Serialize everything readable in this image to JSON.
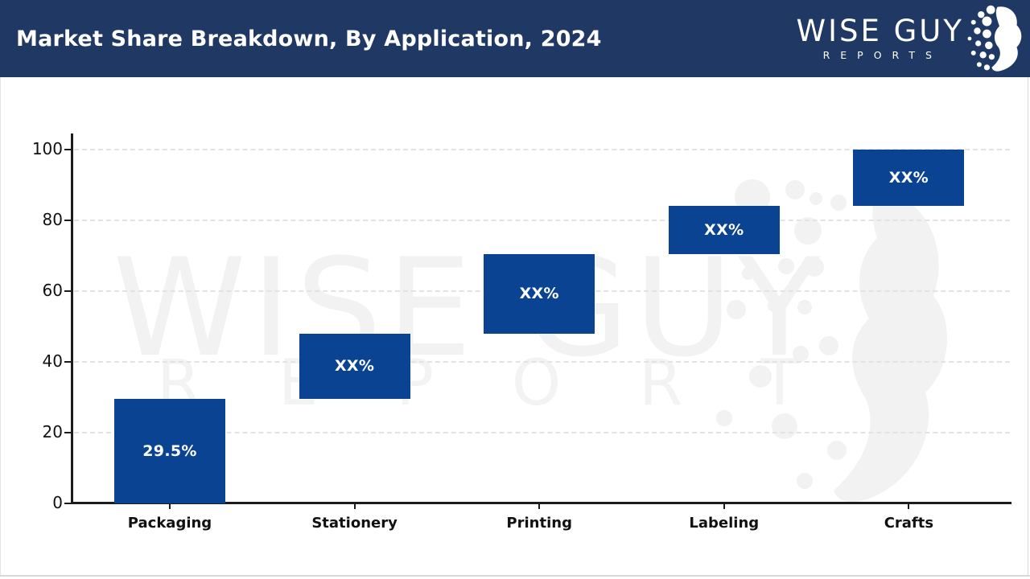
{
  "header": {
    "title": "Market Share Breakdown, By Application, 2024",
    "bg_color": "#1f3864",
    "logo": {
      "line1": "WISE GUY",
      "line2": "REPORTS"
    }
  },
  "icons": {
    "logo_head": "dotted-face-profile-icon"
  },
  "watermark": {
    "line1": "WISE GUY",
    "line2": "R E P O R T S"
  },
  "chart_data": {
    "type": "bar",
    "subtype": "waterfall",
    "title": "Market Share Breakdown, By Application, 2024",
    "categories": [
      "Packaging",
      "Stationery",
      "Printing",
      "Labeling",
      "Crafts"
    ],
    "segments": [
      [
        0,
        29.5
      ],
      [
        29.5,
        48
      ],
      [
        48,
        70.5
      ],
      [
        70.5,
        84
      ],
      [
        84,
        100
      ]
    ],
    "values": [
      29.5,
      18.5,
      22.5,
      13.5,
      16
    ],
    "bar_labels": [
      "29.5%",
      "XX%",
      "XX%",
      "XX%",
      "XX%"
    ],
    "yticks": [
      0,
      20,
      40,
      60,
      80,
      100
    ],
    "ylim": [
      0,
      104
    ],
    "xlabel": "",
    "ylabel": "",
    "grid": "horizontal-dashed",
    "legend": "none",
    "bar_color": "#0a4391",
    "bar_label_color": "#ffffff",
    "axis_color": "#1c1c1c"
  }
}
